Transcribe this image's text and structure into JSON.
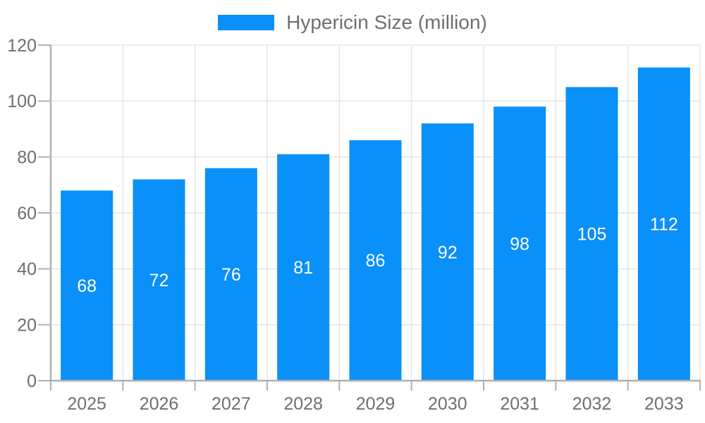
{
  "page": {
    "background": "#ffffff"
  },
  "legend": {
    "label": "Hypericin Size (million)"
  },
  "chart_data": {
    "type": "bar",
    "title": "Hypericin Size (million)",
    "categories": [
      "2025",
      "2026",
      "2027",
      "2028",
      "2029",
      "2030",
      "2031",
      "2032",
      "2033"
    ],
    "series": [
      {
        "name": "Hypericin Size (million)",
        "values": [
          68,
          72,
          76,
          81,
          86,
          92,
          98,
          105,
          112
        ]
      }
    ],
    "xlabel": "",
    "ylabel": "",
    "ylim": [
      0,
      120
    ],
    "yticks": [
      0,
      20,
      40,
      60,
      80,
      100,
      120
    ],
    "grid": true,
    "bar_value_labels_visible": true,
    "legend_position": "top",
    "colors": {
      "bar": "#0a90f9",
      "grid_line": "#e6e6e6",
      "axis_line": "#b0b0b0",
      "tick_mark": "#b0b0b0",
      "tick_text": "#6f6f6f",
      "bar_label_text": "#ffffff",
      "legend_text": "#6f6f6f",
      "background": "#ffffff"
    }
  }
}
